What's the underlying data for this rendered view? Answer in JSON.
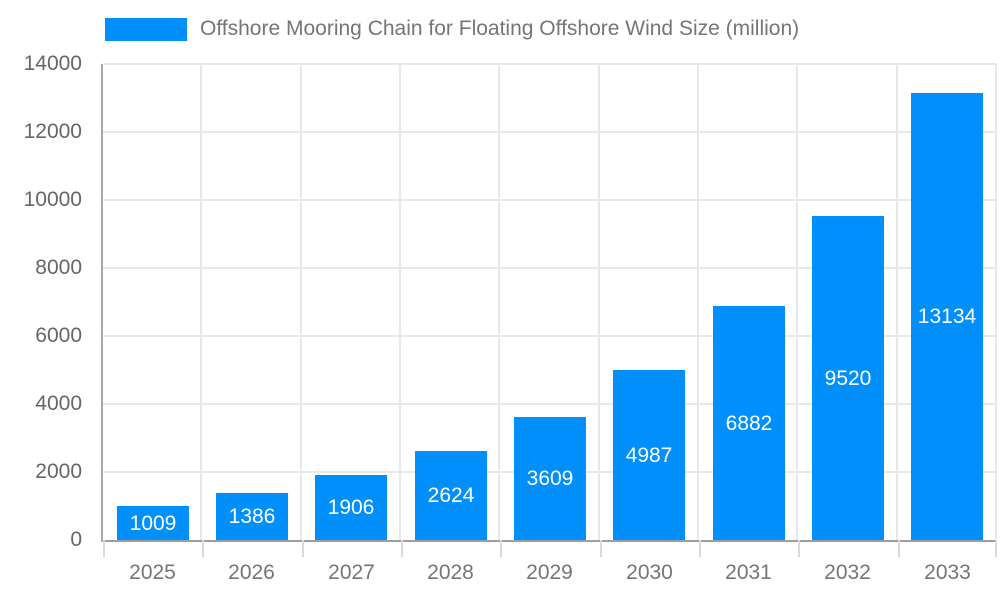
{
  "legend": {
    "label": "Offshore Mooring Chain for Floating Offshore Wind Size (million)",
    "swatch_color": "#008FFB"
  },
  "chart_data": {
    "type": "bar",
    "title": "",
    "xlabel": "",
    "ylabel": "",
    "categories": [
      "2025",
      "2026",
      "2027",
      "2028",
      "2029",
      "2030",
      "2031",
      "2032",
      "2033"
    ],
    "series": [
      {
        "name": "Offshore Mooring Chain for Floating Offshore Wind Size (million)",
        "values": [
          1009,
          1386,
          1906,
          2624,
          3609,
          4987,
          6882,
          9520,
          13134
        ]
      }
    ],
    "data_labels": [
      "1009",
      "1386",
      "1906",
      "2624",
      "3609",
      "4987",
      "6882",
      "9520",
      "13134"
    ],
    "ylim": [
      0,
      14000
    ],
    "yticks": [
      0,
      2000,
      4000,
      6000,
      8000,
      10000,
      12000,
      14000
    ],
    "grid": true,
    "legend_position": "top-left",
    "bar_color": "#008FFB",
    "data_label_color": "#ffffff"
  },
  "colors": {
    "bar": "#008FFB",
    "axis_line": "#9e9e9e",
    "gridline": "#e8e8e8",
    "tick": "#d9d9d9",
    "y_label_text": "#666666",
    "x_label_text": "#757575",
    "legend_text": "#757575",
    "background": "#ffffff"
  }
}
